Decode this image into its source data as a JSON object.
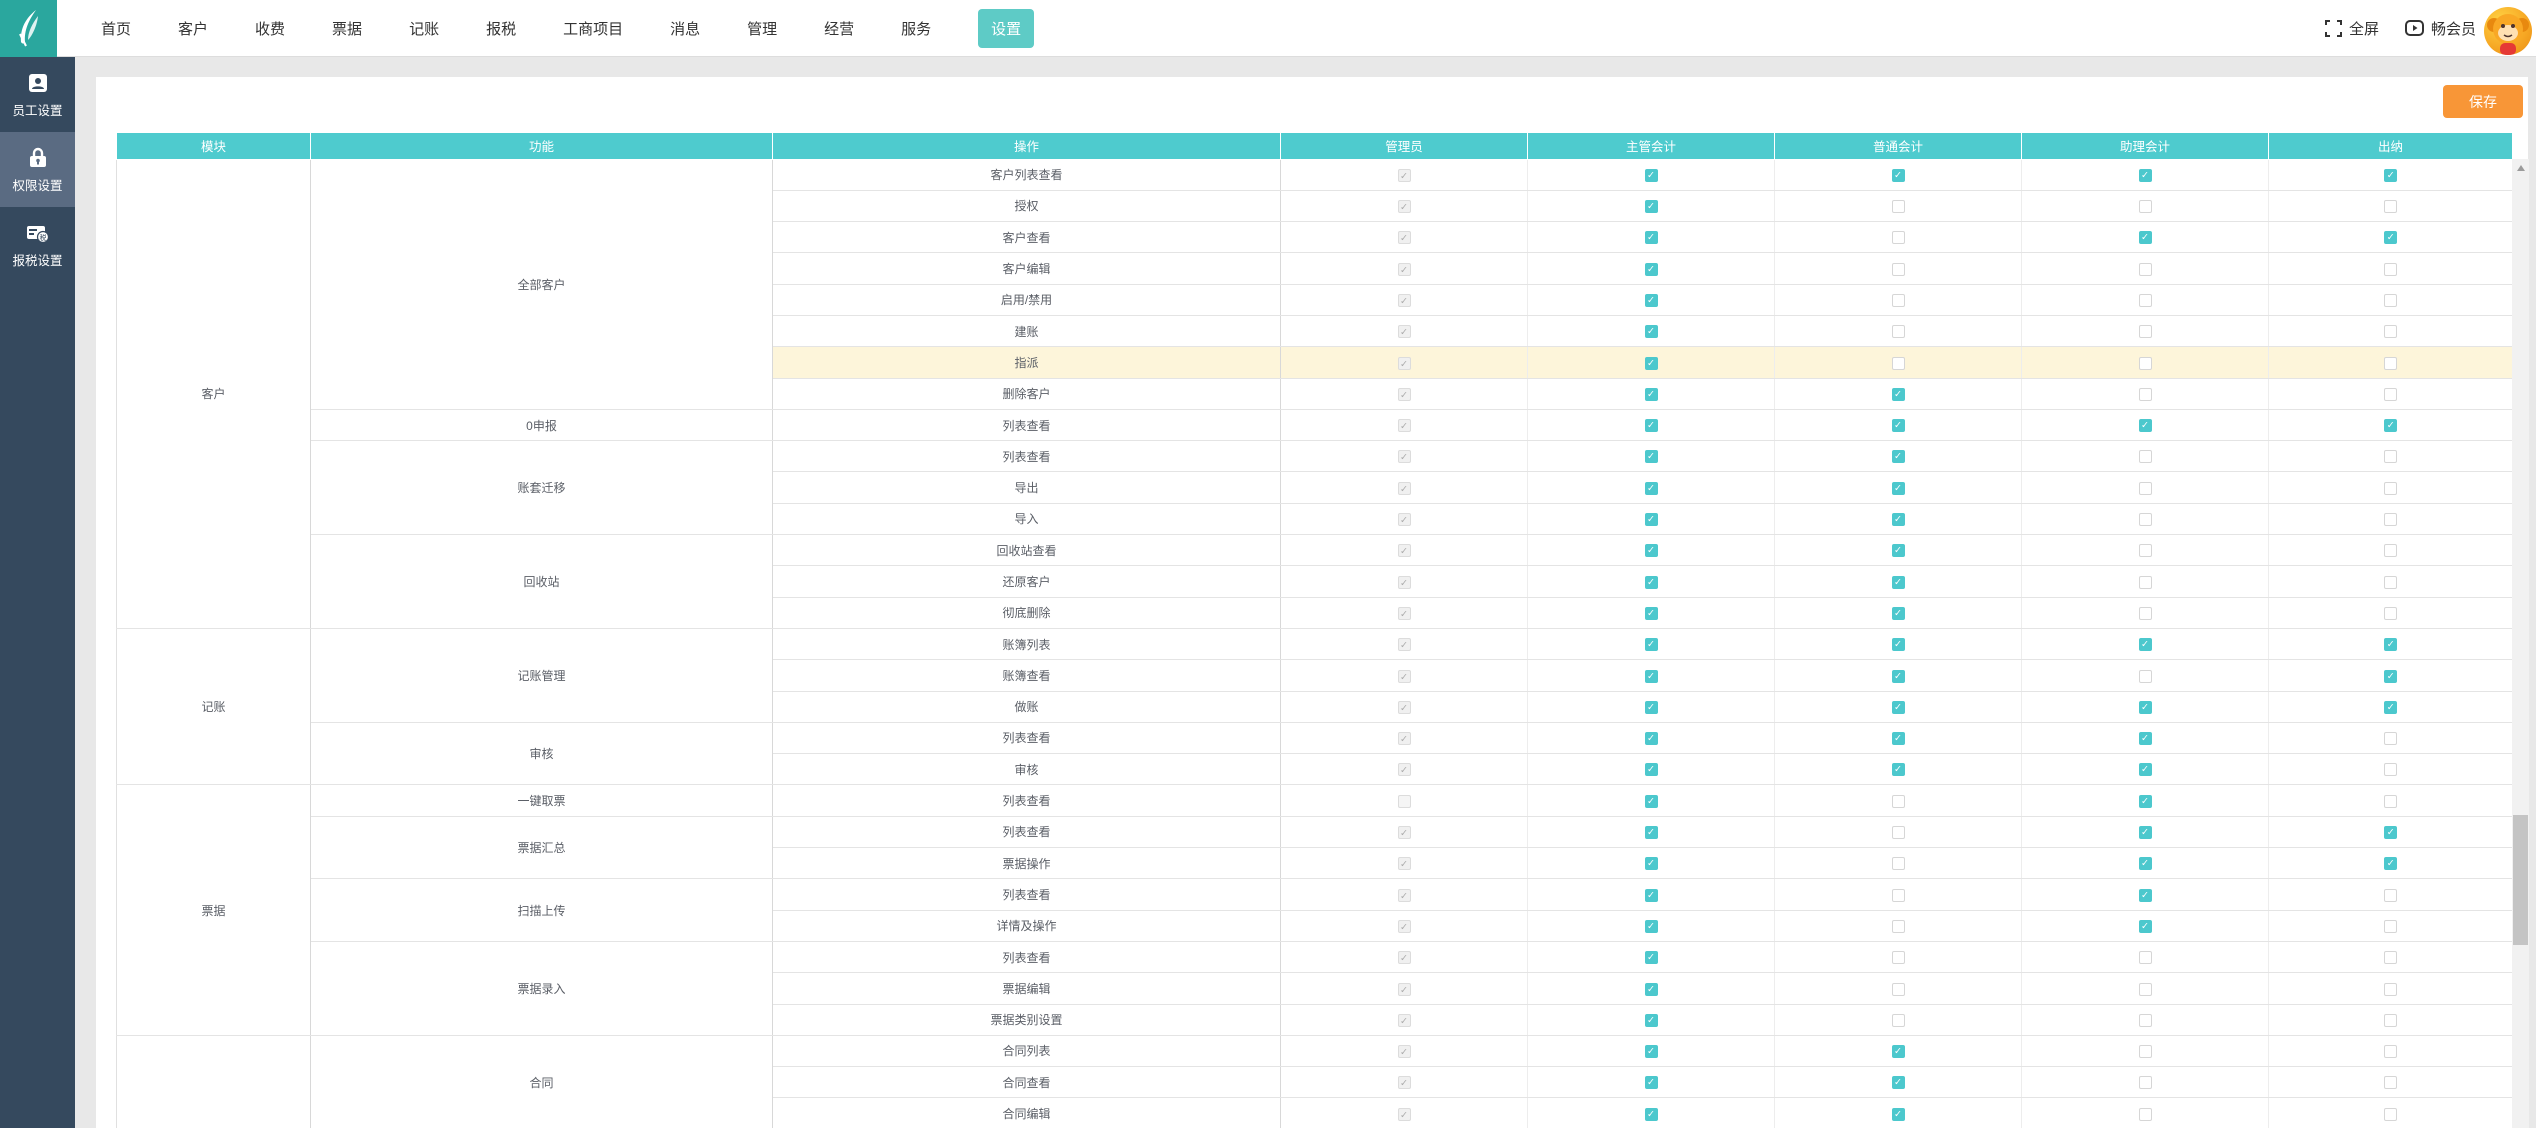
{
  "nav": {
    "items": [
      "首页",
      "客户",
      "收费",
      "票据",
      "记账",
      "报税",
      "工商项目",
      "消息",
      "管理",
      "经营",
      "服务",
      "设置"
    ],
    "active": "设置",
    "right": {
      "fullscreen_label": "全屏",
      "member_label": "畅会员"
    }
  },
  "sidebar": {
    "items": [
      {
        "label": "员工设置",
        "icon": "employee-badge-icon",
        "active": false
      },
      {
        "label": "权限设置",
        "icon": "lock-icon",
        "active": true
      },
      {
        "label": "报税设置",
        "icon": "tax-card-icon",
        "active": false
      }
    ]
  },
  "toolbar": {
    "save_label": "保存"
  },
  "colors": {
    "teal": "#4ecbce",
    "nav_active": "#5ecbc6",
    "orange": "#f89637",
    "sidebar": "#35495e",
    "sidebar_active": "#5a6b82",
    "highlight_row": "#fdf5da"
  },
  "state_legend": {
    "c": "checked",
    "u": "unchecked",
    "dc": "disabled-checked",
    "du": "disabled-unchecked"
  },
  "table": {
    "columns": [
      "模块",
      "功能",
      "操作",
      "管理员",
      "主管会计",
      "普通会计",
      "助理会计",
      "出纳"
    ],
    "modules": [
      {
        "name": "客户",
        "functions": [
          {
            "name": "全部客户",
            "rows": [
              {
                "op": "客户列表查看",
                "states": [
                  "dc",
                  "c",
                  "c",
                  "c",
                  "c"
                ]
              },
              {
                "op": "授权",
                "states": [
                  "dc",
                  "c",
                  "u",
                  "u",
                  "u"
                ]
              },
              {
                "op": "客户查看",
                "states": [
                  "dc",
                  "c",
                  "u",
                  "c",
                  "c"
                ]
              },
              {
                "op": "客户编辑",
                "states": [
                  "dc",
                  "c",
                  "u",
                  "u",
                  "u"
                ]
              },
              {
                "op": "启用/禁用",
                "states": [
                  "dc",
                  "c",
                  "u",
                  "u",
                  "u"
                ]
              },
              {
                "op": "建账",
                "states": [
                  "dc",
                  "c",
                  "u",
                  "u",
                  "u"
                ]
              },
              {
                "op": "指派",
                "states": [
                  "dc",
                  "c",
                  "u",
                  "u",
                  "u"
                ],
                "highlight": true
              },
              {
                "op": "删除客户",
                "states": [
                  "dc",
                  "c",
                  "c",
                  "u",
                  "u"
                ]
              }
            ]
          },
          {
            "name": "0申报",
            "rows": [
              {
                "op": "列表查看",
                "states": [
                  "dc",
                  "c",
                  "c",
                  "c",
                  "c"
                ]
              }
            ]
          },
          {
            "name": "账套迁移",
            "rows": [
              {
                "op": "列表查看",
                "states": [
                  "dc",
                  "c",
                  "c",
                  "u",
                  "u"
                ]
              },
              {
                "op": "导出",
                "states": [
                  "dc",
                  "c",
                  "c",
                  "u",
                  "u"
                ]
              },
              {
                "op": "导入",
                "states": [
                  "dc",
                  "c",
                  "c",
                  "u",
                  "u"
                ]
              }
            ]
          },
          {
            "name": "回收站",
            "rows": [
              {
                "op": "回收站查看",
                "states": [
                  "dc",
                  "c",
                  "c",
                  "u",
                  "u"
                ]
              },
              {
                "op": "还原客户",
                "states": [
                  "dc",
                  "c",
                  "c",
                  "u",
                  "u"
                ]
              },
              {
                "op": "彻底删除",
                "states": [
                  "dc",
                  "c",
                  "c",
                  "u",
                  "u"
                ]
              }
            ]
          }
        ]
      },
      {
        "name": "记账",
        "functions": [
          {
            "name": "记账管理",
            "rows": [
              {
                "op": "账簿列表",
                "states": [
                  "dc",
                  "c",
                  "c",
                  "c",
                  "c"
                ]
              },
              {
                "op": "账簿查看",
                "states": [
                  "dc",
                  "c",
                  "c",
                  "u",
                  "c"
                ]
              },
              {
                "op": "做账",
                "states": [
                  "dc",
                  "c",
                  "c",
                  "c",
                  "c"
                ]
              }
            ]
          },
          {
            "name": "审核",
            "rows": [
              {
                "op": "列表查看",
                "states": [
                  "dc",
                  "c",
                  "c",
                  "c",
                  "u"
                ]
              },
              {
                "op": "审核",
                "states": [
                  "dc",
                  "c",
                  "c",
                  "c",
                  "u"
                ]
              }
            ]
          }
        ]
      },
      {
        "name": "票据",
        "functions": [
          {
            "name": "一键取票",
            "rows": [
              {
                "op": "列表查看",
                "states": [
                  "du",
                  "c",
                  "u",
                  "c",
                  "u"
                ]
              }
            ]
          },
          {
            "name": "票据汇总",
            "rows": [
              {
                "op": "列表查看",
                "states": [
                  "dc",
                  "c",
                  "u",
                  "c",
                  "c"
                ]
              },
              {
                "op": "票据操作",
                "states": [
                  "dc",
                  "c",
                  "u",
                  "c",
                  "c"
                ]
              }
            ]
          },
          {
            "name": "扫描上传",
            "rows": [
              {
                "op": "列表查看",
                "states": [
                  "dc",
                  "c",
                  "u",
                  "c",
                  "u"
                ]
              },
              {
                "op": "详情及操作",
                "states": [
                  "dc",
                  "c",
                  "u",
                  "c",
                  "u"
                ]
              }
            ]
          },
          {
            "name": "票据录入",
            "rows": [
              {
                "op": "列表查看",
                "states": [
                  "dc",
                  "c",
                  "u",
                  "u",
                  "u"
                ]
              },
              {
                "op": "票据编辑",
                "states": [
                  "dc",
                  "c",
                  "u",
                  "u",
                  "u"
                ]
              },
              {
                "op": "票据类别设置",
                "states": [
                  "dc",
                  "c",
                  "u",
                  "u",
                  "u"
                ]
              }
            ]
          }
        ]
      },
      {
        "name": "",
        "functions": [
          {
            "name": "合同",
            "rows": [
              {
                "op": "合同列表",
                "states": [
                  "dc",
                  "c",
                  "c",
                  "u",
                  "u"
                ]
              },
              {
                "op": "合同查看",
                "states": [
                  "dc",
                  "c",
                  "c",
                  "u",
                  "u"
                ]
              },
              {
                "op": "合同编辑",
                "states": [
                  "dc",
                  "c",
                  "c",
                  "u",
                  "u"
                ]
              }
            ]
          }
        ]
      }
    ]
  }
}
